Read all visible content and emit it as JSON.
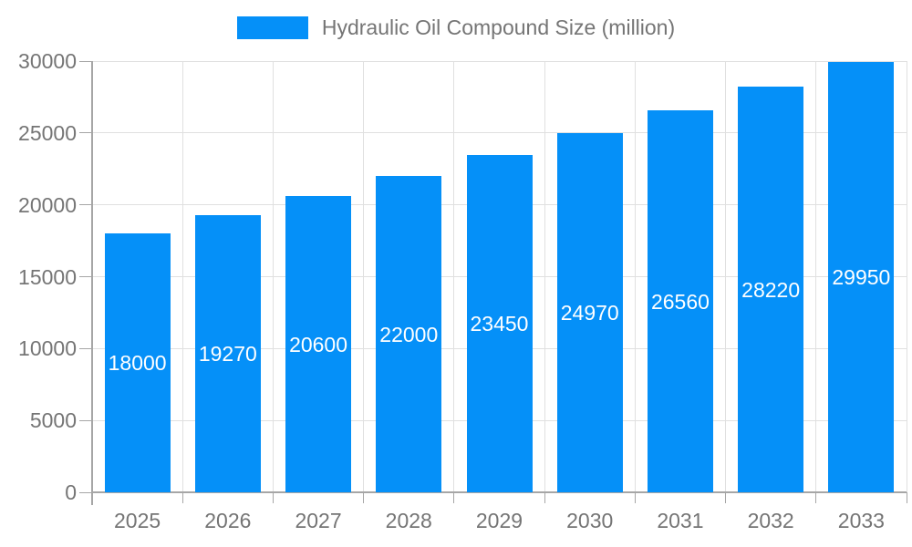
{
  "chart_data": {
    "type": "bar",
    "title": "",
    "categories": [
      "2025",
      "2026",
      "2027",
      "2028",
      "2029",
      "2030",
      "2031",
      "2032",
      "2033"
    ],
    "values": [
      18000,
      19270,
      20600,
      22000,
      23450,
      24970,
      26560,
      28220,
      29950
    ],
    "series": [
      {
        "name": "Hydraulic Oil Compound Size (million)",
        "values": [
          18000,
          19270,
          20600,
          22000,
          23450,
          24970,
          26560,
          28220,
          29950
        ]
      }
    ],
    "legend_entries": [
      "Hydraulic Oil Compound Size (million)"
    ],
    "legend_position": "top-center",
    "xlabel": "",
    "ylabel": "",
    "ylim": [
      0,
      30000
    ],
    "y_ticks": [
      0,
      5000,
      10000,
      15000,
      20000,
      25000,
      30000
    ],
    "grid": true,
    "value_labels": "inside-center",
    "colors": {
      "bar": "#0590f8",
      "grid": "#e0e0e0",
      "axis": "#a6a6a6",
      "text": "#757575",
      "value_label": "#ffffff",
      "background": "#ffffff"
    }
  }
}
